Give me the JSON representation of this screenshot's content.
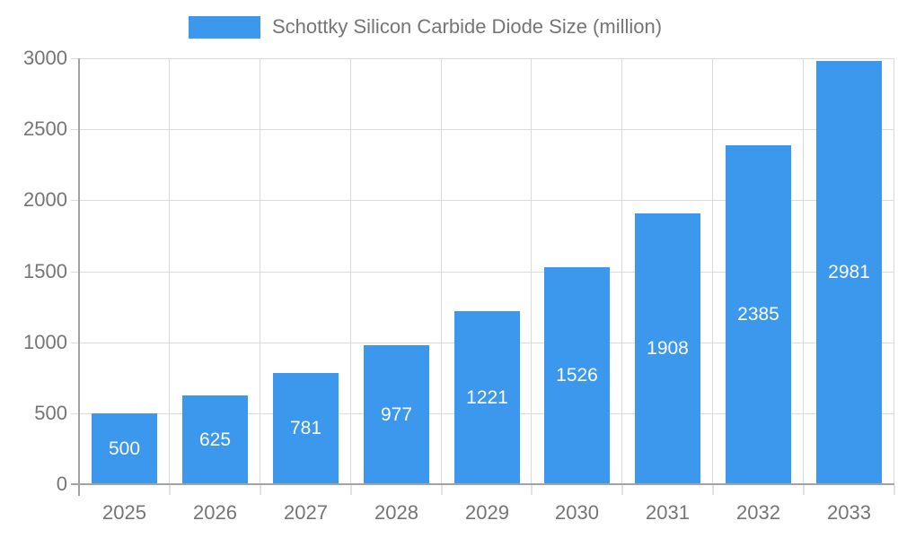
{
  "chart_data": {
    "type": "bar",
    "title": "Schottky Silicon Carbide Diode Size (million)",
    "legend": {
      "label": "Schottky Silicon Carbide Diode Size (million)",
      "position": "top"
    },
    "categories": [
      "2025",
      "2026",
      "2027",
      "2028",
      "2029",
      "2030",
      "2031",
      "2032",
      "2033"
    ],
    "series": [
      {
        "name": "Schottky Silicon Carbide Diode Size (million)",
        "values": [
          500,
          625,
          781,
          977,
          1221,
          1526,
          1908,
          2385,
          2981
        ]
      }
    ],
    "xlabel": "",
    "ylabel": "",
    "ylim": [
      0,
      3000
    ],
    "yticks": [
      0,
      500,
      1000,
      1500,
      2000,
      2500,
      3000
    ],
    "grid": true,
    "bar_value_labels_visible": true,
    "colors": {
      "bar": "#3B98ED",
      "bar_label": "#FFFFFF",
      "axis_line": "#A3A3A3",
      "gridline": "#DBDBDB",
      "tick_stub": "#E2E2E2",
      "tick_label": "#757575",
      "legend_text": "#757575",
      "background": "#FFFFFF"
    }
  }
}
